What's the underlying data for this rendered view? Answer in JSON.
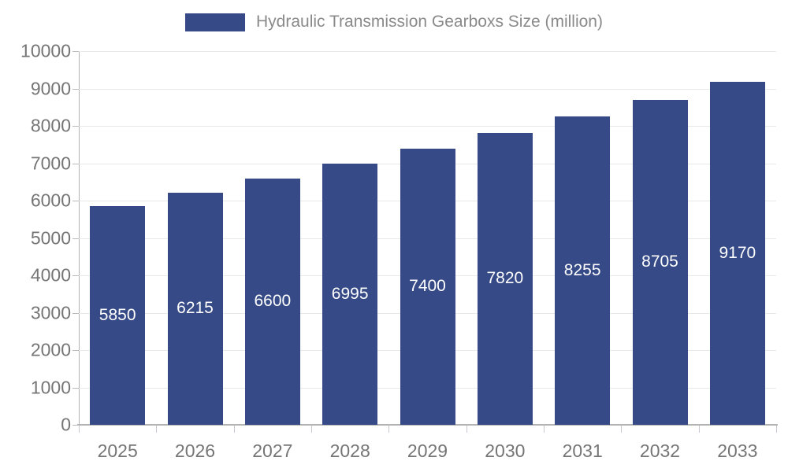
{
  "chart_data": {
    "type": "bar",
    "title": "Hydraulic Transmission Gearboxs Size (million)",
    "xlabel": "",
    "ylabel": "",
    "categories": [
      "2025",
      "2026",
      "2027",
      "2028",
      "2029",
      "2030",
      "2031",
      "2032",
      "2033"
    ],
    "series": [
      {
        "name": "Hydraulic Transmission Gearboxs Size (million)",
        "values": [
          5850,
          6215,
          6600,
          6995,
          7400,
          7820,
          8255,
          8705,
          9170
        ]
      }
    ],
    "ylim": [
      0,
      10000
    ],
    "y_ticks": [
      0,
      1000,
      2000,
      3000,
      4000,
      5000,
      6000,
      7000,
      8000,
      9000,
      10000
    ],
    "grid": "horizontal",
    "legend_position": "top",
    "value_labels": "inside-center",
    "colors": {
      "bar": "#354A86",
      "bar_value_text": "#ffffff",
      "axis_text": "#757575",
      "legend_text": "#8a8a8a",
      "gridline": "#e8e8e8",
      "axis_line": "#b3b3b3"
    }
  },
  "legend": {
    "label": "Hydraulic Transmission Gearboxs Size (million)"
  }
}
